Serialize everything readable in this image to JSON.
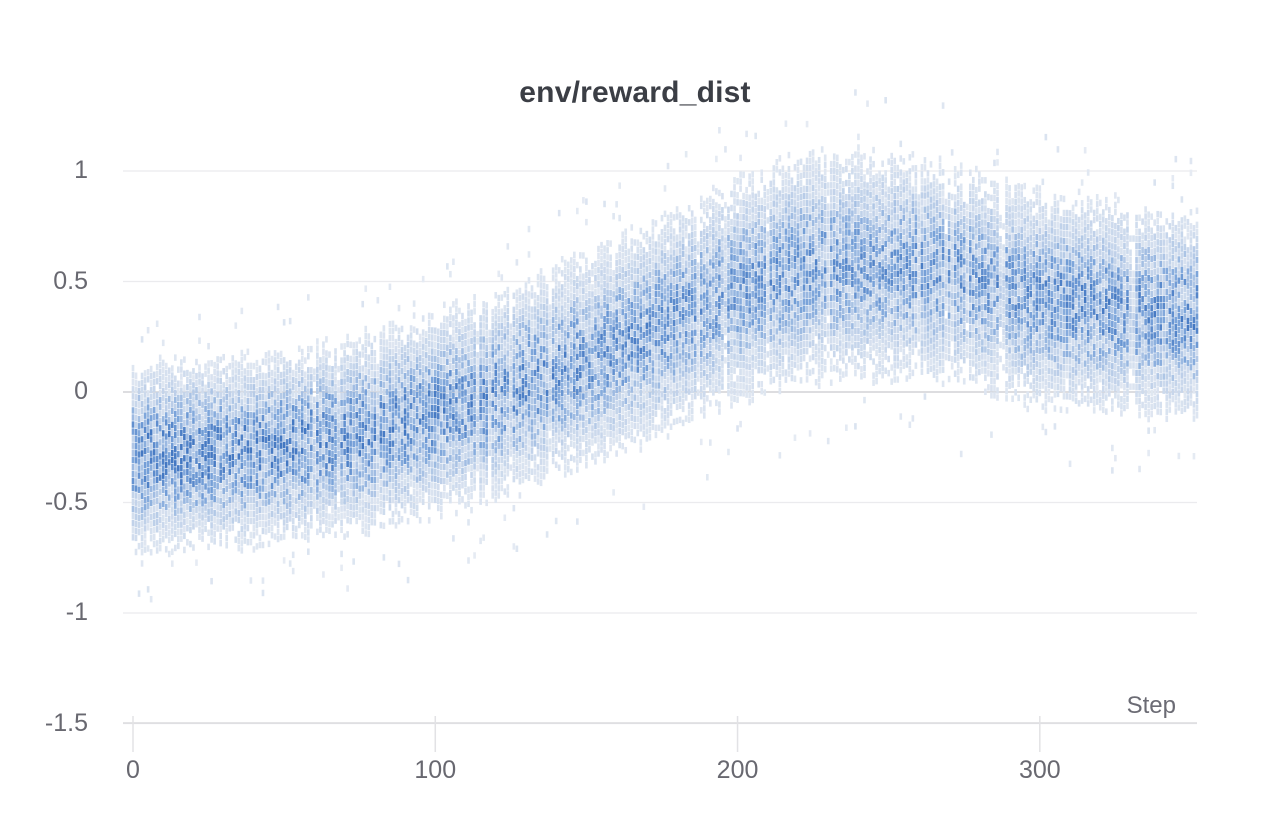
{
  "panel": {
    "background": "#ffffff"
  },
  "chart_data": {
    "type": "heatmap",
    "title": "env/reward_dist",
    "subtitle": "",
    "xlabel": "Step",
    "ylabel": "",
    "legend": false,
    "grid": true,
    "x_range": [
      0,
      352
    ],
    "y_range": [
      -1.5,
      1.25
    ],
    "x_ticks": [
      {
        "v": 0,
        "label": "0"
      },
      {
        "v": 100,
        "label": "100"
      },
      {
        "v": 200,
        "label": "200"
      },
      {
        "v": 300,
        "label": "300"
      }
    ],
    "y_ticks": [
      {
        "v": 1,
        "label": "1"
      },
      {
        "v": 0.5,
        "label": "0.5"
      },
      {
        "v": 0,
        "label": "0"
      },
      {
        "v": -0.5,
        "label": "-0.5"
      },
      {
        "v": -1,
        "label": "-1"
      },
      {
        "v": -1.5,
        "label": "-1.5"
      }
    ],
    "bin_size": 0.032,
    "distribution_profile": [
      {
        "step": 0,
        "mean": -0.3,
        "sd": 0.2
      },
      {
        "step": 40,
        "mean": -0.27,
        "sd": 0.2
      },
      {
        "step": 80,
        "mean": -0.18,
        "sd": 0.21
      },
      {
        "step": 120,
        "mean": -0.02,
        "sd": 0.22
      },
      {
        "step": 160,
        "mean": 0.2,
        "sd": 0.23
      },
      {
        "step": 200,
        "mean": 0.46,
        "sd": 0.24
      },
      {
        "step": 225,
        "mean": 0.57,
        "sd": 0.25
      },
      {
        "step": 260,
        "mean": 0.56,
        "sd": 0.24
      },
      {
        "step": 300,
        "mean": 0.42,
        "sd": 0.23
      },
      {
        "step": 352,
        "mean": 0.34,
        "sd": 0.22
      }
    ],
    "colors": {
      "title_text": "#3b3e45",
      "tick_text": "#686870",
      "axis_label_text": "#6b6b74",
      "grid_line": "#ebebee",
      "zero_line": "#d2d2d6",
      "axis_line": "#dbdbde",
      "tick_mark": "#e2e2e5",
      "cell_ramp": [
        "#eaeef4",
        "#bed0e9",
        "#7ba4da",
        "#4478c2"
      ]
    }
  }
}
